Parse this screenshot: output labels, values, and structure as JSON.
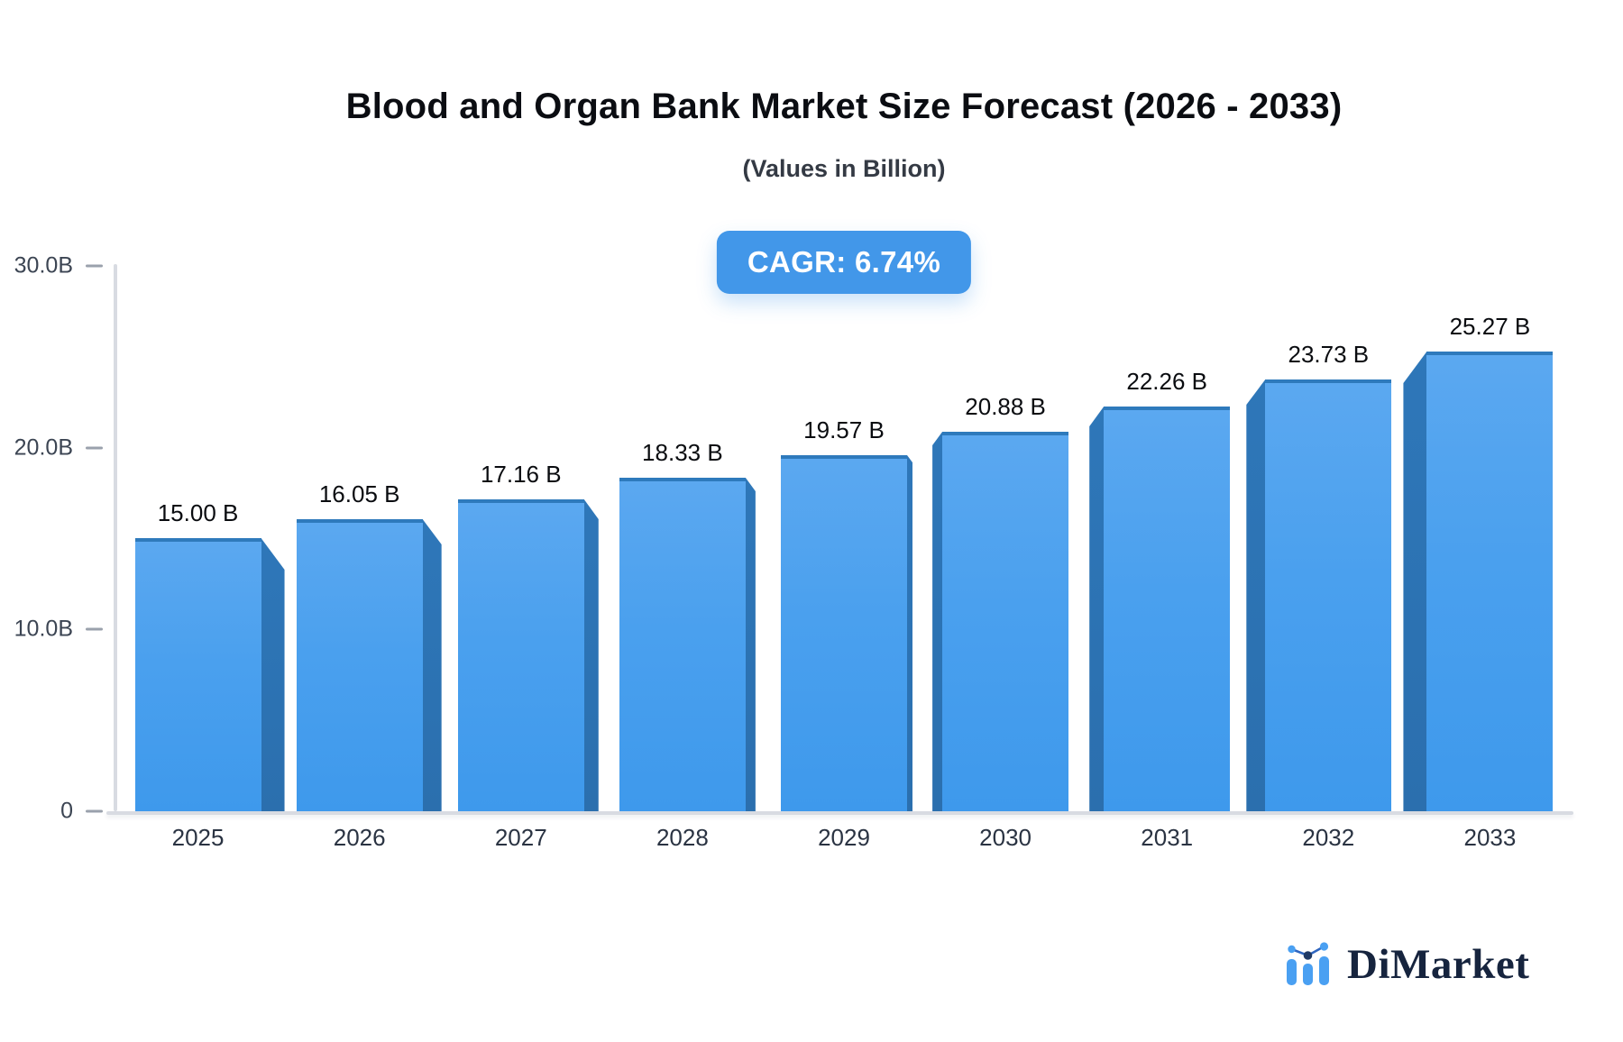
{
  "header": {
    "title": "Blood and Organ Bank Market Size Forecast (2026 - 2033)",
    "subtitle": "(Values in Billion)"
  },
  "badge": {
    "label": "CAGR: 6.74%",
    "bg_color": "#4297e9"
  },
  "chart_data": {
    "type": "bar",
    "title": "Blood and Organ Bank Market Size Forecast (2026 - 2033)",
    "subtitle": "(Values in Billion)",
    "cagr": "6.74%",
    "categories": [
      "2025",
      "2026",
      "2027",
      "2028",
      "2029",
      "2030",
      "2031",
      "2032",
      "2033"
    ],
    "values": [
      15.0,
      16.05,
      17.16,
      18.33,
      19.57,
      20.88,
      22.26,
      23.73,
      25.27
    ],
    "value_labels": [
      "15.00 B",
      "16.05 B",
      "17.16 B",
      "18.33 B",
      "19.57 B",
      "20.88 B",
      "22.26 B",
      "23.73 B",
      "25.27 B"
    ],
    "xlabel": "",
    "ylabel": "",
    "ylim": [
      0,
      30
    ],
    "yticks": [
      {
        "v": 0,
        "label": "0"
      },
      {
        "v": 10,
        "label": "10.0B"
      },
      {
        "v": 20,
        "label": "20.0B"
      },
      {
        "v": 30,
        "label": "30.0B"
      }
    ],
    "grid": false,
    "legend": false,
    "bar_color_top": "#5ba8f0",
    "bar_color_bottom": "#3e99ec",
    "bar_side_color": "#2d73b4",
    "bar_top_edge_color": "#2e7abc",
    "axis_color": "#d8dbe2"
  },
  "logo": {
    "text": "DiMarket",
    "icon": "dimarket-chart-icon",
    "accent_color": "#4aa0f2",
    "navy_color": "#16243e"
  }
}
